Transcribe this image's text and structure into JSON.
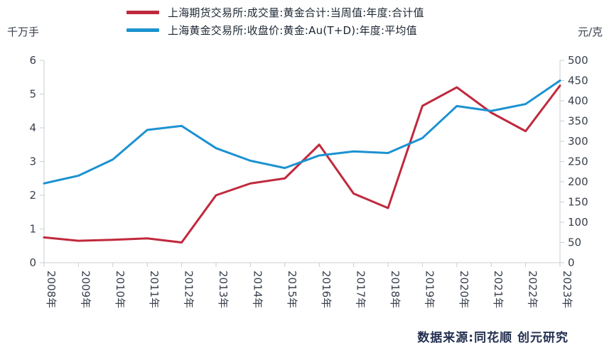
{
  "source": "数据来源:同花顺 创元研究",
  "chart_data": {
    "type": "line",
    "title": "",
    "grid": false,
    "legend_position": "top",
    "categories": [
      "2008年",
      "2009年",
      "2010年",
      "2011年",
      "2012年",
      "2013年",
      "2014年",
      "2015年",
      "2016年",
      "2017年",
      "2018年",
      "2019年",
      "2020年",
      "2021年",
      "2022年",
      "2023年"
    ],
    "left_axis": {
      "unit": "千万手",
      "min": 0,
      "max": 6,
      "ticks": [
        0,
        1,
        2,
        3,
        4,
        5,
        6
      ]
    },
    "right_axis": {
      "unit": "元/克",
      "min": 0,
      "max": 500,
      "ticks": [
        0,
        50,
        100,
        150,
        200,
        250,
        300,
        350,
        400,
        450,
        500
      ]
    },
    "series": [
      {
        "name": "上海期货交易所:成交量:黄金合计:当周值:年度:合计值",
        "axis": "left",
        "color": "#c0293d",
        "values": [
          0.75,
          0.65,
          0.68,
          0.72,
          0.6,
          2.0,
          2.35,
          2.5,
          3.5,
          2.05,
          1.62,
          4.65,
          5.2,
          4.45,
          3.9,
          5.25
        ]
      },
      {
        "name": "上海黄金交易所:收盘价:黄金:Au(T+D):年度:平均值",
        "axis": "right",
        "color": "#1b92d1",
        "values": [
          196,
          215,
          255,
          328,
          338,
          283,
          252,
          234,
          265,
          275,
          271,
          308,
          387,
          375,
          392,
          450
        ]
      }
    ]
  }
}
